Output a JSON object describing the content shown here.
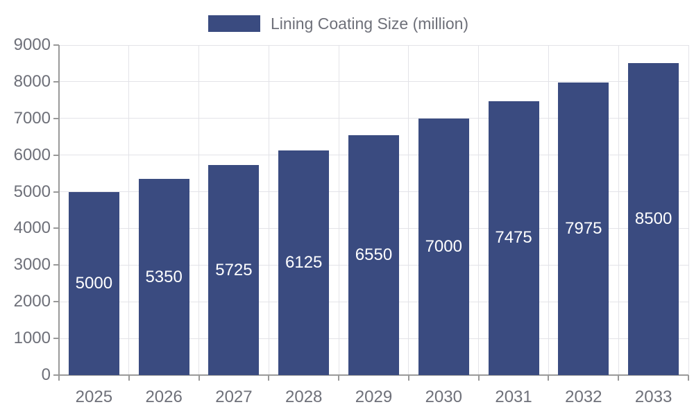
{
  "legend": {
    "label": "Lining Coating Size (million)"
  },
  "chart_data": {
    "type": "bar",
    "title": "",
    "categories": [
      "2025",
      "2026",
      "2027",
      "2028",
      "2029",
      "2030",
      "2031",
      "2032",
      "2033"
    ],
    "series": [
      {
        "name": "Lining Coating Size (million)",
        "values": [
          5000,
          5350,
          5725,
          6125,
          6550,
          7000,
          7475,
          7975,
          8500
        ]
      }
    ],
    "xlabel": "",
    "ylabel": "",
    "ylim": [
      0,
      9000
    ],
    "ytick_step": 1000,
    "grid": true,
    "legend_position": "top-center",
    "bar_value_labels": "inside-center",
    "colors": {
      "bar": "#3A4B80",
      "bar_label": "#FFFFFF",
      "axis_line": "#999999",
      "grid_line": "#E3E3E8",
      "tick_label": "#6E7079",
      "legend_text": "#6E7079",
      "background": "#FFFFFF"
    }
  }
}
